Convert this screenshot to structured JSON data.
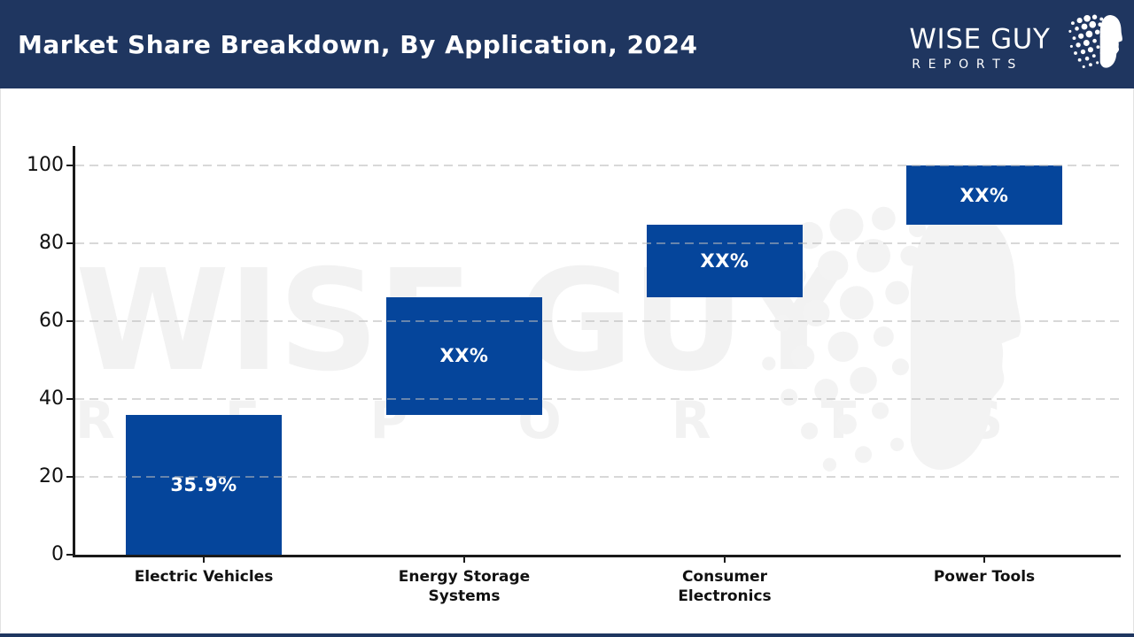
{
  "header": {
    "title": "Market Share Breakdown, By Application, 2024",
    "bg_color": "#1F3660",
    "logo": {
      "line1": "WISE GUY",
      "line2": "R E P O R T S"
    }
  },
  "watermark": {
    "line1": "WISE GUY",
    "line2": "R E P O R T S"
  },
  "chart_data": {
    "type": "bar",
    "subtype": "waterfall",
    "title": "Market Share Breakdown, By Application, 2024",
    "categories": [
      "Electric Vehicles",
      "Energy Storage\nSystems",
      "Consumer\nElectronics",
      "Power Tools"
    ],
    "bars": [
      {
        "category": "Electric Vehicles",
        "label": "35.9%",
        "start": 0,
        "end": 35.9
      },
      {
        "category": "Energy Storage Systems",
        "label": "XX%",
        "start": 35.9,
        "end": 66.2
      },
      {
        "category": "Consumer Electronics",
        "label": "XX%",
        "start": 66.2,
        "end": 84.7
      },
      {
        "category": "Power Tools",
        "label": "XX%",
        "start": 84.7,
        "end": 100
      }
    ],
    "xlabel": "",
    "ylabel": "",
    "ylim": [
      0,
      100
    ],
    "yticks": [
      0,
      20,
      40,
      60,
      80,
      100
    ],
    "grid": "horizontal-dashed",
    "legend": "none",
    "bar_color": "#05459B",
    "bar_label_color": "#FFFFFF",
    "axis_color": "#1A1A1A"
  },
  "footer": {
    "bar_color": "#1F3660"
  }
}
